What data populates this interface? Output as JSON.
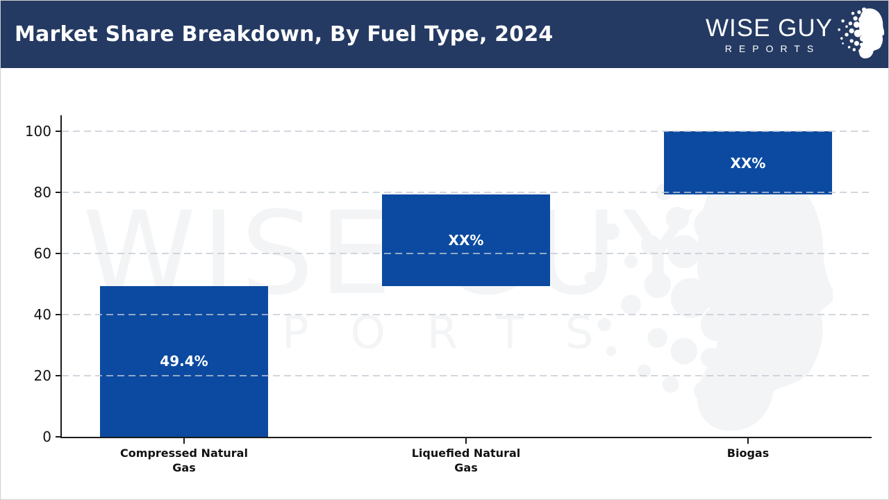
{
  "header": {
    "title": "Market Share Breakdown, By Fuel Type, 2024",
    "logo": {
      "line1": "WISE GUY",
      "line2": "REPORTS"
    }
  },
  "watermark": {
    "line1": "WISE GUY",
    "line2": "REPORTS"
  },
  "colors": {
    "header_background": "#243a63",
    "bar_blue": "#0b4aa0",
    "axis_black": "#1a1a1a",
    "gridline_gray": "#d9d9d9",
    "watermark_gray": "#f3f4f6",
    "title_white": "#ffffff"
  },
  "chart_data": {
    "type": "bar",
    "variant": "waterfall",
    "title": "Market Share Breakdown, By Fuel Type, 2024",
    "categories": [
      "Compressed Natural Gas",
      "Liquefied Natural Gas",
      "Biogas"
    ],
    "category_label_lines": [
      [
        "Compressed Natural",
        "Gas"
      ],
      [
        "Liquefied Natural",
        "Gas"
      ],
      [
        "Biogas"
      ]
    ],
    "segments": [
      {
        "category": "Compressed Natural Gas",
        "start": 0,
        "end": 49.4,
        "label": "49.4%"
      },
      {
        "category": "Liquefied Natural Gas",
        "start": 49.4,
        "end": 79.3,
        "label": "XX%"
      },
      {
        "category": "Biogas",
        "start": 79.3,
        "end": 100,
        "label": "XX%"
      }
    ],
    "yticks": [
      0,
      20,
      40,
      60,
      80,
      100
    ],
    "ylim": [
      0,
      105.3
    ],
    "grid": {
      "axis": "y",
      "style": "dashed",
      "color": "#d9d9d9",
      "over_bars": true
    },
    "legend": "none",
    "bar_color": "#0b4aa0",
    "bar_label_color": "#ffffff",
    "xlabel": "",
    "ylabel": ""
  }
}
